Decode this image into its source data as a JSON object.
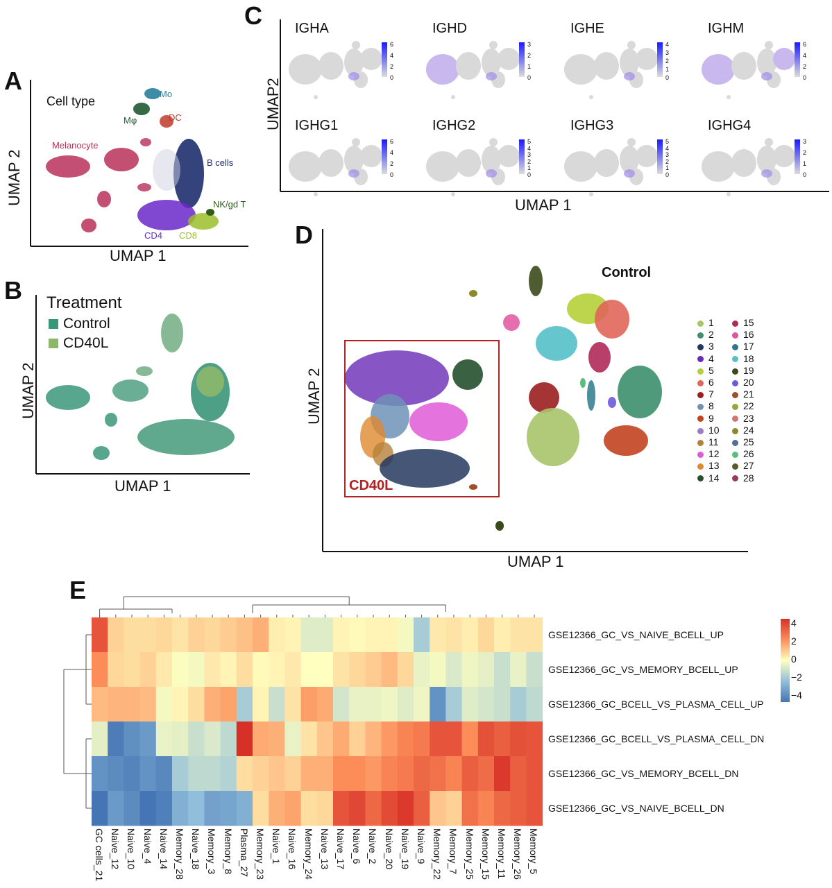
{
  "panels": {
    "A": {
      "letter": "A",
      "title": "Cell type",
      "xlabel": "UMAP 1",
      "ylabel": "UMAP 2",
      "labels": [
        {
          "text": "Mo",
          "color": "#2a7f9e"
        },
        {
          "text": "Mφ",
          "color": "#1f5a32"
        },
        {
          "text": "DC",
          "color": "#c0392b"
        },
        {
          "text": "Melanocyte",
          "color": "#b8305a"
        },
        {
          "text": "B cells",
          "color": "#1f2f6e"
        },
        {
          "text": "NK/gd T",
          "color": "#2e5b1a"
        },
        {
          "text": "CD4",
          "color": "#6a28c8"
        },
        {
          "text": "CD8",
          "color": "#9bbf2a"
        }
      ]
    },
    "B": {
      "letter": "B",
      "title": "Treatment",
      "xlabel": "UMAP 1",
      "ylabel": "UMAP 2",
      "legend": [
        {
          "label": "Control",
          "color": "#3a9679"
        },
        {
          "label": "CD40L",
          "color": "#8db86b"
        }
      ]
    },
    "C": {
      "letter": "C",
      "xlabel": "UMAP 1",
      "ylabel": "UMAP2",
      "genes": [
        {
          "name": "IGHA",
          "ticks": [
            "6",
            "4",
            "2",
            "0"
          ]
        },
        {
          "name": "IGHD",
          "ticks": [
            "3",
            "2",
            "1",
            "0"
          ]
        },
        {
          "name": "IGHE",
          "ticks": [
            "4",
            "3",
            "2",
            "1",
            "0"
          ]
        },
        {
          "name": "IGHM",
          "ticks": [
            "6",
            "4",
            "2",
            "0"
          ]
        },
        {
          "name": "IGHG1",
          "ticks": [
            "6",
            "4",
            "2",
            "0"
          ]
        },
        {
          "name": "IGHG2",
          "ticks": [
            "5",
            "4",
            "3",
            "2",
            "1",
            "0"
          ]
        },
        {
          "name": "IGHG3",
          "ticks": [
            "5",
            "4",
            "3",
            "2",
            "1",
            "0"
          ]
        },
        {
          "name": "IGHG4",
          "ticks": [
            "3",
            "2",
            "1",
            "0"
          ]
        }
      ]
    },
    "D": {
      "letter": "D",
      "xlabel": "UMAP 1",
      "ylabel": "UMAP 2",
      "control_label": "Control",
      "cd40l_label": "CD40L",
      "box_color": "#b22222",
      "clusters": [
        {
          "id": "1",
          "color": "#a9c46b"
        },
        {
          "id": "2",
          "color": "#3d8f6e"
        },
        {
          "id": "3",
          "color": "#24385f"
        },
        {
          "id": "4",
          "color": "#6a2ab5"
        },
        {
          "id": "5",
          "color": "#b6cf3a"
        },
        {
          "id": "6",
          "color": "#e0665a"
        },
        {
          "id": "7",
          "color": "#9b1f1f"
        },
        {
          "id": "8",
          "color": "#6f92b7"
        },
        {
          "id": "9",
          "color": "#c2431f"
        },
        {
          "id": "10",
          "color": "#9b7cc8"
        },
        {
          "id": "11",
          "color": "#b5813a"
        },
        {
          "id": "12",
          "color": "#e05ad8"
        },
        {
          "id": "13",
          "color": "#e08a30"
        },
        {
          "id": "14",
          "color": "#24502e"
        },
        {
          "id": "15",
          "color": "#b02a5a"
        },
        {
          "id": "16",
          "color": "#e055a0"
        },
        {
          "id": "17",
          "color": "#2b7a8c"
        },
        {
          "id": "18",
          "color": "#54c0c8"
        },
        {
          "id": "19",
          "color": "#3b4a1a"
        },
        {
          "id": "20",
          "color": "#6a5ae0"
        },
        {
          "id": "21",
          "color": "#a05028"
        },
        {
          "id": "22",
          "color": "#9aa43a"
        },
        {
          "id": "23",
          "color": "#d07870"
        },
        {
          "id": "24",
          "color": "#8a8a2a"
        },
        {
          "id": "25",
          "color": "#50709a"
        },
        {
          "id": "26",
          "color": "#58c07a"
        },
        {
          "id": "27",
          "color": "#5a5a2a"
        },
        {
          "id": "28",
          "color": "#9a3a5a"
        }
      ]
    },
    "E": {
      "letter": "E",
      "rows": [
        "GSE12366_GC_VS_NAIVE_BCELL_UP",
        "GSE12366_GC_VS_MEMORY_BCELL_UP",
        "GSE12366_GC_BCELL_VS_PLASMA_CELL_UP",
        "GSE12366_GC_BCELL_VS_PLASMA_CELL_DN",
        "GSE12366_GC_VS_MEMORY_BCELL_DN",
        "GSE12366_GC_VS_NAIVE_BCELL_DN"
      ],
      "columns": [
        "GC cells_21",
        "Naive_12",
        "Naive_10",
        "Naive_4",
        "Naive_14",
        "Memory_28",
        "Naive_18",
        "Memory_3",
        "Memory_8",
        "Plasma_27",
        "Memory_23",
        "Naive_1",
        "Naive_16",
        "Memory_24",
        "Naive_13",
        "Naive_17",
        "Naive_6",
        "Naive_2",
        "Naive_20",
        "Naive_19",
        "Naive_9",
        "Memory_22",
        "Memory_7",
        "Memory_25",
        "Memory_15",
        "Memory_11",
        "Memory_26",
        "Memory_5"
      ],
      "colorbar_ticks": [
        "4",
        "2",
        "0",
        "−2",
        "−4"
      ]
    }
  },
  "chart_data": {
    "type": "heatmap",
    "title": "",
    "xlabel": "",
    "ylabel": "",
    "rows": [
      "GSE12366_GC_VS_NAIVE_BCELL_UP",
      "GSE12366_GC_VS_MEMORY_BCELL_UP",
      "GSE12366_GC_BCELL_VS_PLASMA_CELL_UP",
      "GSE12366_GC_BCELL_VS_PLASMA_CELL_DN",
      "GSE12366_GC_VS_MEMORY_BCELL_DN",
      "GSE12366_GC_VS_NAIVE_BCELL_DN"
    ],
    "columns": [
      "GC cells_21",
      "Naive_12",
      "Naive_10",
      "Naive_4",
      "Naive_14",
      "Memory_28",
      "Naive_18",
      "Memory_3",
      "Memory_8",
      "Plasma_27",
      "Memory_23",
      "Naive_1",
      "Naive_16",
      "Memory_24",
      "Naive_13",
      "Naive_17",
      "Naive_6",
      "Naive_2",
      "Naive_20",
      "Naive_19",
      "Naive_9",
      "Memory_22",
      "Memory_7",
      "Memory_25",
      "Memory_15",
      "Memory_11",
      "Memory_26",
      "Memory_5"
    ],
    "values": [
      [
        3.2,
        0.8,
        0.6,
        0.6,
        0.7,
        0.5,
        0.8,
        0.7,
        0.9,
        1.1,
        1.4,
        0.3,
        0.2,
        -0.6,
        -0.6,
        0.2,
        0.1,
        0.2,
        0.2,
        -0.2,
        -1.6,
        0.4,
        0.5,
        0.3,
        0.7,
        0.3,
        0.5,
        0.5
      ],
      [
        2.0,
        0.7,
        0.6,
        0.8,
        0.4,
        -0.1,
        -0.2,
        0.4,
        0.2,
        0.6,
        0.1,
        0.2,
        0.4,
        0.0,
        0.0,
        0.5,
        0.7,
        0.9,
        1.2,
        0.7,
        -0.4,
        -0.2,
        -0.7,
        -0.3,
        -0.5,
        -1.0,
        -0.4,
        -1.0
      ],
      [
        1.2,
        1.3,
        1.3,
        1.2,
        -0.2,
        0.2,
        0.6,
        1.4,
        1.6,
        -1.6,
        0.2,
        -1.0,
        0.5,
        1.7,
        1.5,
        -0.8,
        -0.4,
        -0.4,
        -0.3,
        -0.6,
        -0.3,
        -3.2,
        -1.6,
        -0.6,
        -0.8,
        -1.0,
        -1.6,
        -1.2
      ],
      [
        -0.5,
        -3.8,
        -3.3,
        -3.0,
        -0.4,
        -0.5,
        -1.0,
        -0.7,
        -1.2,
        4.2,
        1.5,
        1.4,
        -0.4,
        0.5,
        1.0,
        1.5,
        0.8,
        1.3,
        1.8,
        2.2,
        2.4,
        3.2,
        3.2,
        2.0,
        3.3,
        3.0,
        3.3,
        3.2
      ],
      [
        -3.2,
        -3.4,
        -3.6,
        -3.2,
        -3.5,
        -1.6,
        -1.2,
        -1.2,
        -1.4,
        0.6,
        0.8,
        1.0,
        0.8,
        1.4,
        1.4,
        2.0,
        2.0,
        1.8,
        2.2,
        2.4,
        2.8,
        2.6,
        2.2,
        3.0,
        2.7,
        3.8,
        3.0,
        3.2
      ],
      [
        -4.0,
        -3.0,
        -3.4,
        -4.0,
        -3.7,
        -2.4,
        -2.0,
        -2.8,
        -2.7,
        -2.4,
        0.6,
        1.4,
        1.6,
        0.6,
        0.7,
        3.2,
        3.5,
        2.8,
        3.4,
        3.8,
        3.0,
        1.0,
        0.8,
        2.6,
        2.2,
        2.8,
        3.0,
        3.2
      ]
    ],
    "colorbar": {
      "min": -4,
      "max": 4,
      "ticks": [
        4,
        2,
        0,
        -2,
        -4
      ]
    }
  }
}
